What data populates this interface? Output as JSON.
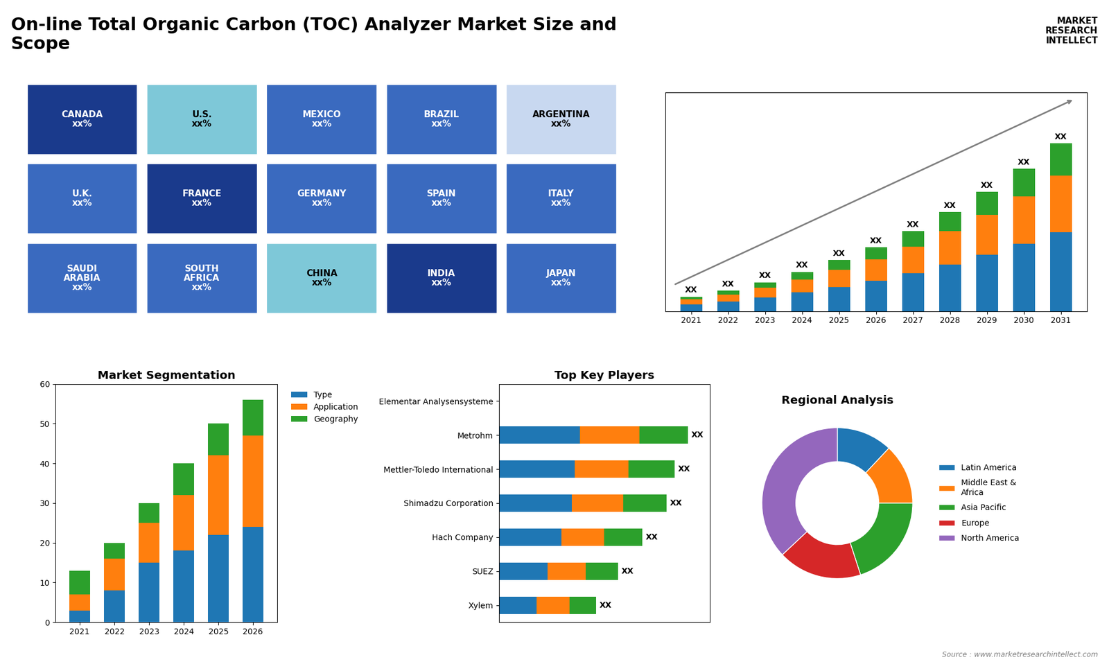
{
  "title": "On-line Total Organic Carbon (TOC) Analyzer Market Size and\nScope",
  "annotations": [
    "MARKET\nRESEARCH\nINTELLECT",
    "Source : www.marketresearchintellect.com"
  ],
  "chart_data": [
    {
      "type": "map",
      "categories": [
        "CANADA\nxx%",
        "U.S.\nxx%",
        "MEXICO\nxx%",
        "BRAZIL\nxx%",
        "ARGENTINA\nxx%",
        "U.K.\nxx%",
        "FRANCE\nxx%",
        "GERMANY\nxx%",
        "SPAIN\nxx%",
        "ITALY\nxx%",
        "SAUDI\nARABIA\nxx%",
        "SOUTH\nAFRICA\nxx%",
        "CHINA\nxx%",
        "INDIA\nxx%",
        "JAPAN\nxx%"
      ],
      "colors": [
        "#1a3a8c",
        "#7ec8d8",
        "#3a6abf",
        "#3a6abf",
        "#c8d8f0",
        "#3a6abf",
        "#1a3a8c",
        "#3a6abf",
        "#3a6abf",
        "#3a6abf",
        "#3a6abf",
        "#3a6abf",
        "#7ec8d8",
        "#1a3a8c",
        "#3a6abf"
      ],
      "tick_labels": false
    },
    {
      "type": "bar",
      "stacked": true,
      "categories": [
        "2021",
        "2022",
        "2023",
        "2024",
        "2025",
        "2026",
        "2027",
        "2028",
        "2029",
        "2030",
        "2031"
      ],
      "series": [
        {
          "values": [
            1.0,
            1.4,
            2.0,
            2.7,
            3.5,
            4.4,
            5.5,
            6.8,
            8.2,
            9.8,
            11.5
          ]
        },
        {
          "values": [
            0.7,
            1.0,
            1.4,
            1.9,
            2.5,
            3.1,
            3.9,
            4.8,
            5.8,
            6.9,
            8.2
          ]
        },
        {
          "values": [
            0.4,
            0.6,
            0.8,
            1.1,
            1.4,
            1.8,
            2.2,
            2.8,
            3.3,
            4.0,
            4.7
          ]
        }
      ],
      "ylim": [
        0,
        31.72
      ],
      "yticks": [],
      "tick_labels": "x",
      "data_labels": true,
      "value_labels": [
        "XX",
        "XX",
        "XX",
        "XX",
        "XX",
        "XX",
        "XX",
        "XX",
        "XX",
        "XX",
        "XX"
      ]
    },
    {
      "type": "bar",
      "stacked": true,
      "title": "Market Segmentation",
      "categories": [
        "2021",
        "2022",
        "2023",
        "2024",
        "2025",
        "2026"
      ],
      "series": [
        {
          "name": "Type",
          "values": [
            3,
            8,
            15,
            18,
            22,
            24
          ]
        },
        {
          "name": "Application",
          "values": [
            4,
            8,
            10,
            14,
            20,
            23
          ]
        },
        {
          "name": "Geography",
          "values": [
            6,
            4,
            5,
            8,
            8,
            9
          ]
        }
      ],
      "ylim": [
        0,
        60
      ],
      "yticks": [
        0,
        10,
        20,
        30,
        40,
        50,
        60
      ],
      "legend": "upper left"
    },
    {
      "type": "bar",
      "stacked": true,
      "orientation": "horizontal",
      "title": "Top Key Players",
      "categories": [
        "Elementar Analysensysteme",
        "Metrohm",
        "Mettler-Toledo International",
        "Shimadzu Corporation",
        "Hach Company",
        "SUEZ",
        "Xylem"
      ],
      "series": [
        {
          "values": [
            0,
            30,
            28,
            27,
            23,
            18,
            14
          ]
        },
        {
          "values": [
            0,
            22,
            20,
            19,
            16,
            14,
            12
          ]
        },
        {
          "values": [
            0,
            18,
            17,
            16,
            14,
            12,
            10
          ]
        }
      ],
      "xlim": [
        0,
        78
      ],
      "xticks": [],
      "tick_labels": "y",
      "data_labels": true,
      "value_labels": [
        null,
        "XX",
        "XX",
        "XX",
        "XX",
        "XX",
        "XX"
      ]
    },
    {
      "type": "pie",
      "title": "Regional Analysis",
      "categories": [
        "Latin America",
        "Middle East &\nAfrica",
        "Asia Pacific",
        "Europe",
        "North America"
      ],
      "values": [
        12,
        13,
        20,
        18,
        37
      ],
      "legend": "center left"
    }
  ]
}
